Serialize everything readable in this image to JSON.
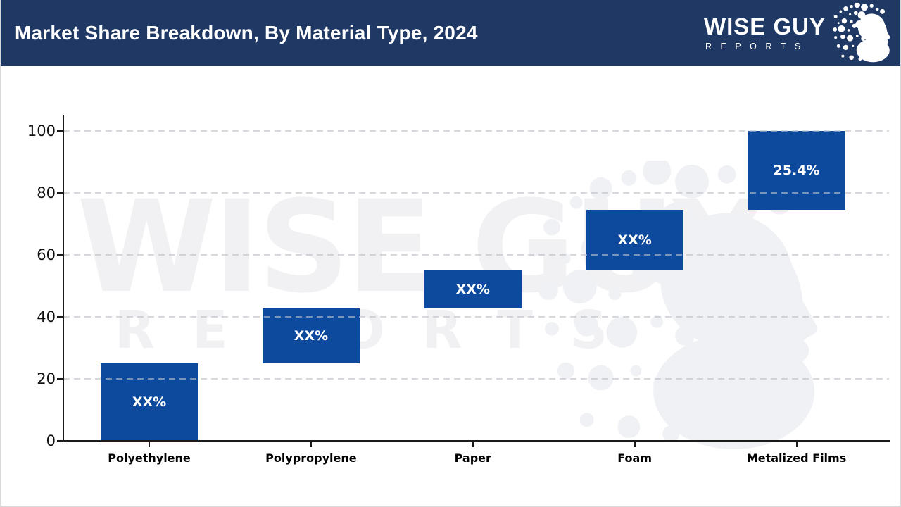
{
  "header": {
    "title": "Market Share Breakdown, By Material Type, 2024",
    "logo": {
      "line1": "WISE GUY",
      "line2": "REPORTS"
    }
  },
  "watermark": {
    "line1": "WISE GUY",
    "line2": "REPORTS"
  },
  "colors": {
    "header_bg": "#1F3864",
    "bar": "#0D4A9D",
    "grid_on_white": "#DCDCDC",
    "axis": "#1A1A1A",
    "watermark": "#F0F1F4",
    "value_label": "#FFFFFF"
  },
  "chart_data": {
    "type": "bar",
    "subtype": "waterfall",
    "title": "Market Share Breakdown, By Material Type, 2024",
    "categories": [
      "Polyethylene",
      "Polypropylene",
      "Paper",
      "Foam",
      "Metalized Films"
    ],
    "segments": [
      {
        "category": "Polyethylene",
        "start": 0,
        "end": 24.9,
        "label": "XX%"
      },
      {
        "category": "Polypropylene",
        "start": 24.9,
        "end": 42.8,
        "label": "XX%"
      },
      {
        "category": "Paper",
        "start": 42.8,
        "end": 55.0,
        "label": "XX%"
      },
      {
        "category": "Foam",
        "start": 55.0,
        "end": 74.6,
        "label": "XX%"
      },
      {
        "category": "Metalized Films",
        "start": 74.6,
        "end": 100,
        "label": "25.4%"
      }
    ],
    "yticks": [
      0,
      20,
      40,
      60,
      80,
      100
    ],
    "ylim": [
      0,
      105
    ],
    "xlabel": "",
    "ylabel": "",
    "grid": "horizontal-dashed",
    "legend": "none"
  }
}
